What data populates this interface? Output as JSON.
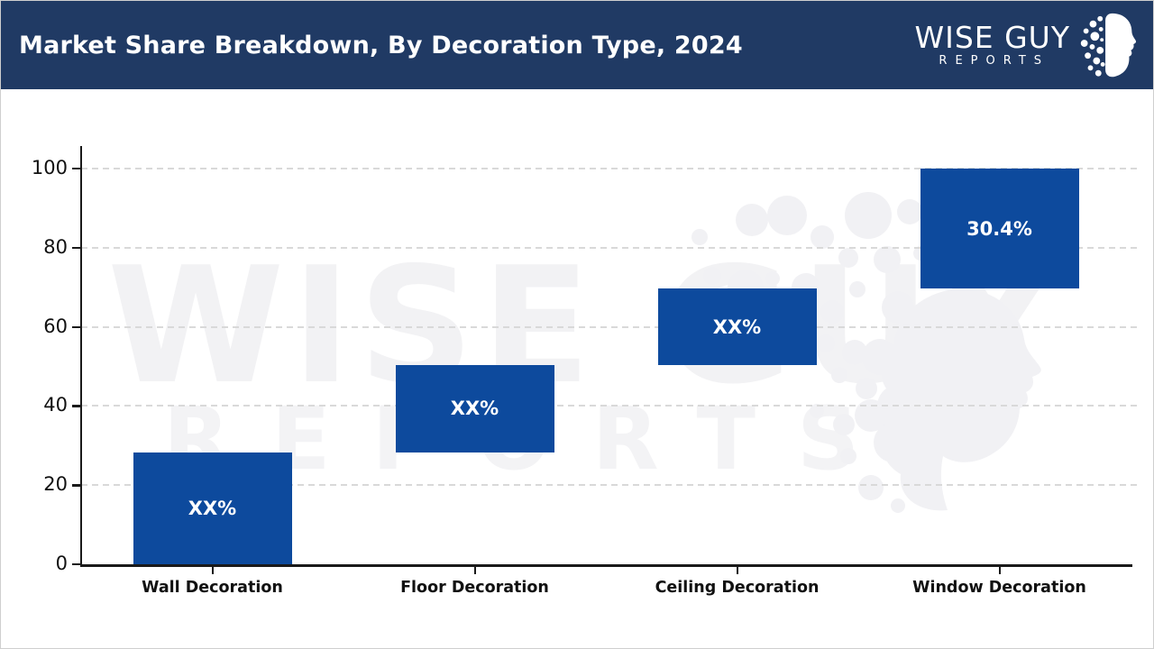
{
  "header": {
    "title": "Market Share Breakdown, By Decoration Type, 2024",
    "logo": {
      "line1": "WISE GUY",
      "line2": "REPORTS"
    }
  },
  "watermark": {
    "line1": "WISE GUY",
    "line2": "REPORTS"
  },
  "chart_data": {
    "type": "bar",
    "subtype": "waterfall",
    "title": "Market Share Breakdown, By Decoration Type, 2024",
    "xlabel": "",
    "ylabel": "",
    "ylim": [
      0,
      100
    ],
    "yticks": [
      0,
      20,
      40,
      60,
      80,
      100
    ],
    "grid": "horizontal-dashed",
    "legend": "none",
    "categories": [
      "Wall Decoration",
      "Floor Decoration",
      "Ceiling Decoration",
      "Window Decoration"
    ],
    "segments": [
      {
        "category": "Wall Decoration",
        "start": 0,
        "end": 28.3,
        "value_label": "XX%"
      },
      {
        "category": "Floor Decoration",
        "start": 28.3,
        "end": 50.3,
        "value_label": "XX%"
      },
      {
        "category": "Ceiling Decoration",
        "start": 50.3,
        "end": 69.6,
        "value_label": "XX%"
      },
      {
        "category": "Window Decoration",
        "start": 69.6,
        "end": 100,
        "value_label": "30.4%"
      }
    ]
  },
  "colors": {
    "header_bg": "#203A64",
    "bar": "#0D4A9D",
    "bar_label": "#ffffff",
    "grid": "#d9d9d9",
    "axis": "#1a1a1a",
    "watermark": "#f1f1f4"
  }
}
